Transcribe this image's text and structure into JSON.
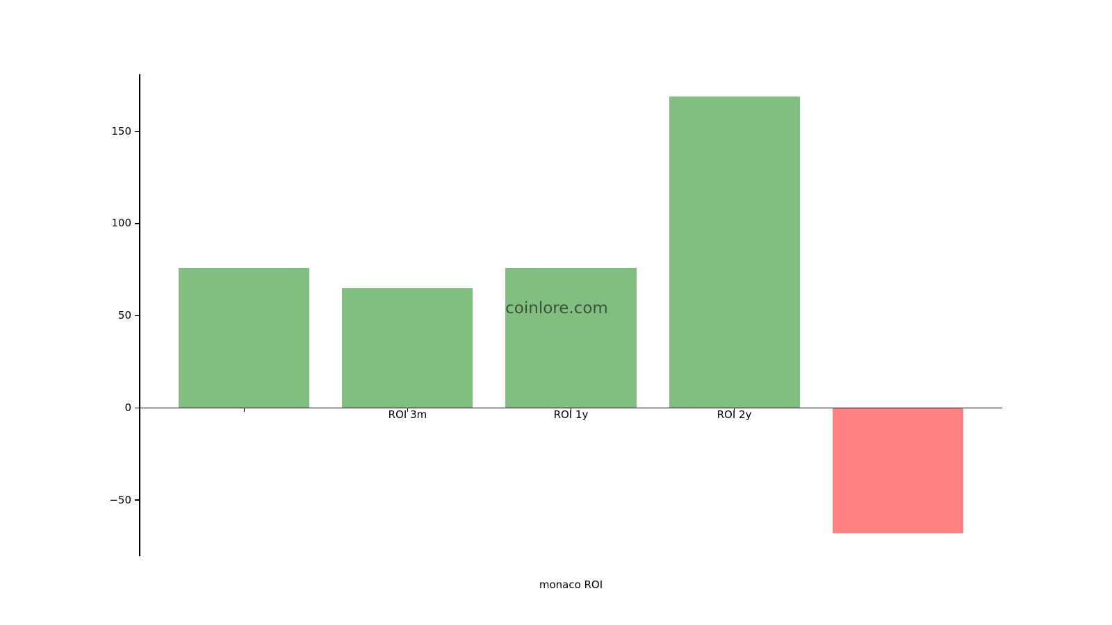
{
  "page": {
    "background_color": "#ffffff"
  },
  "watermark": {
    "text": "coinlore.com",
    "color": "rgba(25,25,25,0.66)"
  },
  "chart_data": {
    "type": "bar",
    "title": "monaco ROI",
    "categories": [
      "",
      "ROI 3m",
      "ROI 1y",
      "ROI 2y",
      ""
    ],
    "values": [
      76,
      65,
      76,
      169,
      -68
    ],
    "series": [
      {
        "name": "monaco ROI",
        "values": [
          76,
          65,
          76,
          169,
          -68
        ]
      }
    ],
    "positive_color": "#80bf80",
    "negative_color": "#ff8080",
    "axis_color": "#000000",
    "y_ticks": [
      {
        "value": 150,
        "label": "150"
      },
      {
        "value": 100,
        "label": "100"
      },
      {
        "value": 50,
        "label": "50"
      },
      {
        "value": 0,
        "label": "0"
      },
      {
        "value": -50,
        "label": "−50"
      }
    ],
    "ylim": [
      -80.5,
      181
    ],
    "xlabel": "",
    "ylabel": "",
    "grid": false,
    "legend": false
  }
}
